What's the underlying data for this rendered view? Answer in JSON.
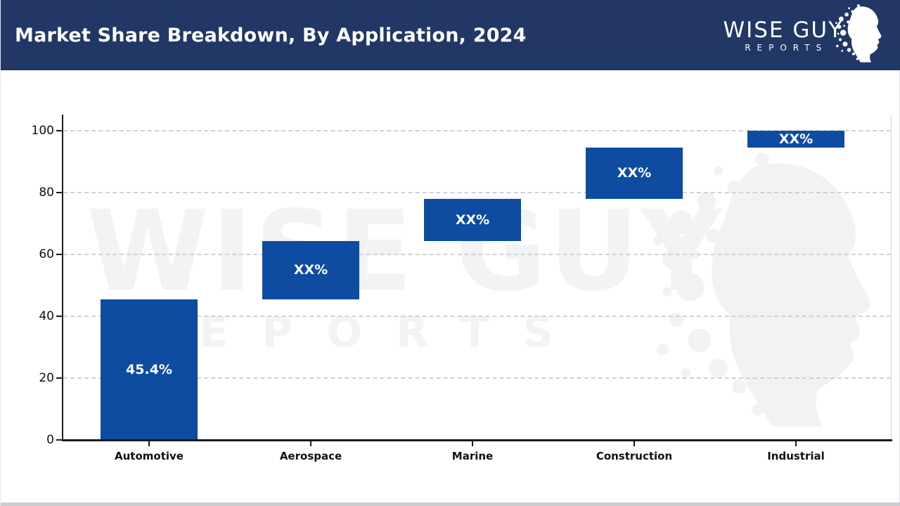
{
  "header": {
    "title": "Market Share Breakdown, By Application, 2024",
    "logo": {
      "line1": "WISE GUY",
      "line2": "REPORTS"
    }
  },
  "watermark": {
    "line1": "WISE GUY",
    "line2": "REPORTS"
  },
  "colors": {
    "header_bg": "#213765",
    "bar_blue": "#0D4CA0",
    "grid_gray": "#cfd2d5",
    "axis_black": "#1a1a1a",
    "bar_label_white": "#ffffff",
    "watermark_gray": "#f2f3f5"
  },
  "chart_data": {
    "type": "bar",
    "subtype": "waterfall",
    "title": "Market Share Breakdown, By Application, 2024",
    "xlabel": "",
    "ylabel": "",
    "categories": [
      "Automotive",
      "Aerospace",
      "Marine",
      "Construction",
      "Industrial"
    ],
    "segments": [
      {
        "category": "Automotive",
        "start": 0,
        "end": 45.4,
        "value": 45.4,
        "label": "45.4%"
      },
      {
        "category": "Aerospace",
        "start": 45.4,
        "end": 64.4,
        "value": 19.0,
        "label": "XX%"
      },
      {
        "category": "Marine",
        "start": 64.4,
        "end": 78.0,
        "value": 13.6,
        "label": "XX%"
      },
      {
        "category": "Construction",
        "start": 78.0,
        "end": 94.5,
        "value": 16.5,
        "label": "XX%"
      },
      {
        "category": "Industrial",
        "start": 94.6,
        "end": 100.0,
        "value": 5.4,
        "label": "XX%"
      }
    ],
    "yticks": [
      0,
      20,
      40,
      60,
      80,
      100
    ],
    "ylim": [
      0,
      105
    ],
    "grid": "horizontal-dashed",
    "legend": "none"
  }
}
